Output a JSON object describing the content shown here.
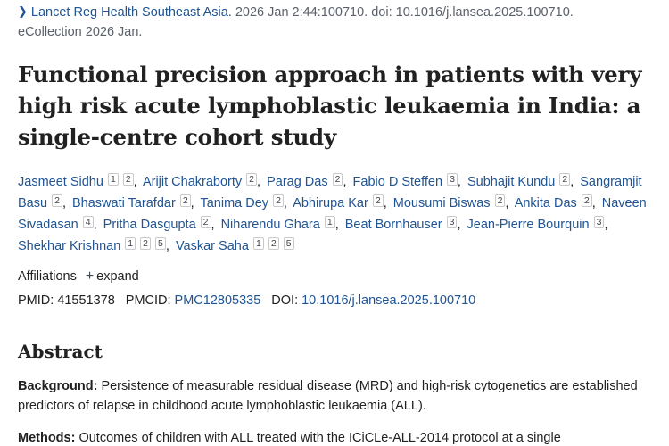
{
  "citation": {
    "journal": "Lancet Reg Health Southeast Asia.",
    "details": " 2026 Jan 2:44:100710. doi: 10.1016/j.lansea.2025.100710.",
    "ecollection": "eCollection 2026 Jan."
  },
  "title": "Functional precision approach in patients with very high risk acute lymphoblastic leukaemia in India: a single-centre cohort study",
  "authors": [
    {
      "name": "Jasmeet Sidhu",
      "affs": [
        "1",
        "2"
      ]
    },
    {
      "name": "Arijit Chakraborty",
      "affs": [
        "2"
      ]
    },
    {
      "name": "Parag Das",
      "affs": [
        "2"
      ]
    },
    {
      "name": "Fabio D Steffen",
      "affs": [
        "3"
      ]
    },
    {
      "name": "Subhajit Kundu",
      "affs": [
        "2"
      ]
    },
    {
      "name": "Sangramjit Basu",
      "affs": [
        "2"
      ]
    },
    {
      "name": "Bhaswati Tarafdar",
      "affs": [
        "2"
      ]
    },
    {
      "name": "Tanima Dey",
      "affs": [
        "2"
      ]
    },
    {
      "name": "Abhirupa Kar",
      "affs": [
        "2"
      ]
    },
    {
      "name": "Mousumi Biswas",
      "affs": [
        "2"
      ]
    },
    {
      "name": "Ankita Das",
      "affs": [
        "2"
      ]
    },
    {
      "name": "Naveen Sivadasan",
      "affs": [
        "4"
      ]
    },
    {
      "name": "Pritha Dasgupta",
      "affs": [
        "2"
      ]
    },
    {
      "name": "Niharendu Ghara",
      "affs": [
        "1"
      ]
    },
    {
      "name": "Beat Bornhauser",
      "affs": [
        "3"
      ]
    },
    {
      "name": "Jean-Pierre Bourquin",
      "affs": [
        "3"
      ]
    },
    {
      "name": "Shekhar Krishnan",
      "affs": [
        "1",
        "2",
        "5"
      ]
    },
    {
      "name": "Vaskar Saha",
      "affs": [
        "1",
        "2",
        "5"
      ]
    }
  ],
  "affiliations": {
    "label": "Affiliations",
    "expand_icon": "plus-icon",
    "expand_label": "expand"
  },
  "ids": {
    "pmid_label": "PMID:",
    "pmid": "41551378",
    "pmcid_label": "PMCID:",
    "pmcid": "PMC12805335",
    "doi_label": "DOI:",
    "doi": "10.1016/j.lansea.2025.100710"
  },
  "abstract": {
    "heading": "Abstract",
    "background_label": "Background:",
    "background_text": " Persistence of measurable residual disease (MRD) and high-risk cytogenetics are established predictors of relapse in childhood acute lymphoblastic leukaemia (ALL).",
    "methods_label": "Methods:",
    "methods_text": " Outcomes of children with ALL treated with the ICiCLe-ALL-2014 protocol at a single"
  },
  "colors": {
    "link": "#205493",
    "text": "#212121",
    "muted": "#5b616b"
  }
}
